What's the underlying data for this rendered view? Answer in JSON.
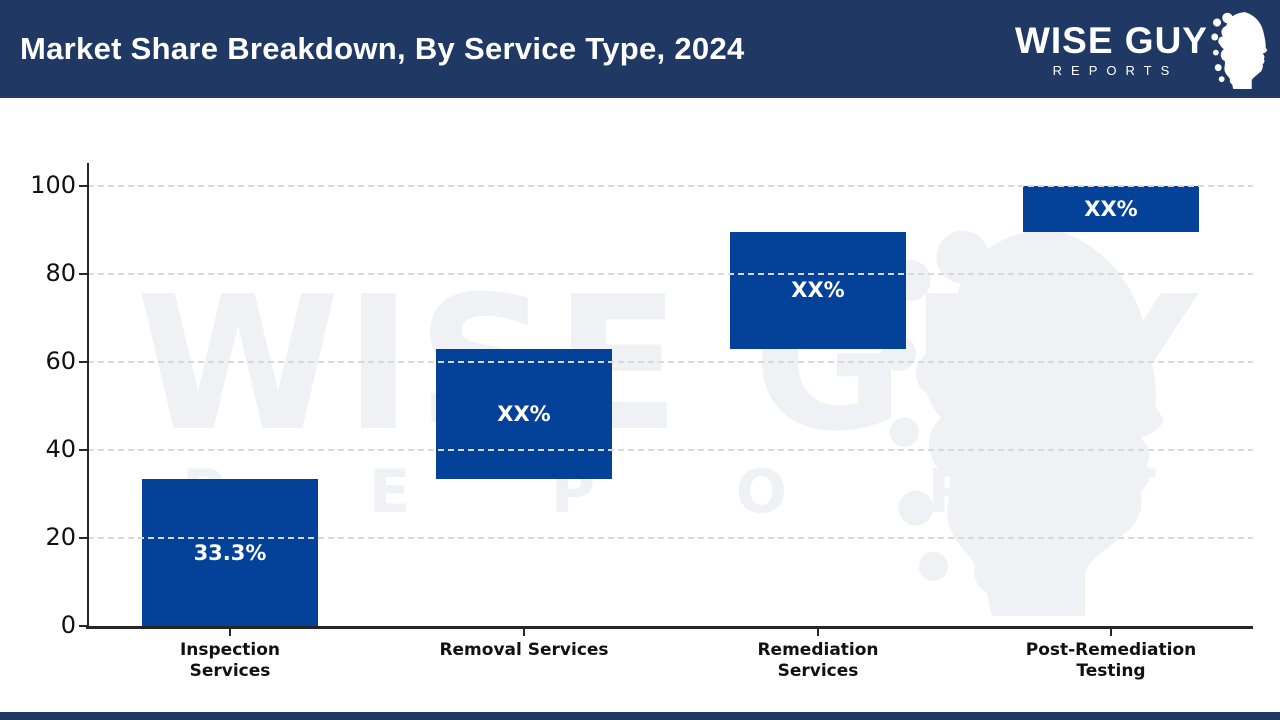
{
  "header": {
    "title": "Market Share Breakdown, By Service Type, 2024",
    "bg_color": "#1f3864",
    "logo": {
      "line1": "WISE GUY",
      "line2": "REPORTS"
    }
  },
  "watermark": {
    "line1": "WISE GUY",
    "line2": "R E P O R T S"
  },
  "chart_data": {
    "type": "bar",
    "variant": "waterfall",
    "title": "Market Share Breakdown, By Service Type, 2024",
    "categories": [
      "Inspection\nServices",
      "Removal Services",
      "Remediation\nServices",
      "Post-Remediation\nTesting"
    ],
    "segments": [
      {
        "category": "Inspection Services",
        "start": 0,
        "end": 33.3,
        "label": "33.3%"
      },
      {
        "category": "Removal Services",
        "start": 33.3,
        "end": 63,
        "label": "XX%"
      },
      {
        "category": "Remediation Services",
        "start": 63,
        "end": 89.5,
        "label": "XX%"
      },
      {
        "category": "Post-Remediation Testing",
        "start": 89.5,
        "end": 100,
        "label": "XX%"
      }
    ],
    "ylim": [
      0,
      100
    ],
    "yticks": [
      0,
      20,
      40,
      60,
      80,
      100
    ],
    "grid": "horizontal-dashed",
    "grid_color": "#d9d9d9",
    "bar_color": "#04429a",
    "bar_label_color": "#ffffff",
    "axis_color": "#262626",
    "legend": "none"
  }
}
